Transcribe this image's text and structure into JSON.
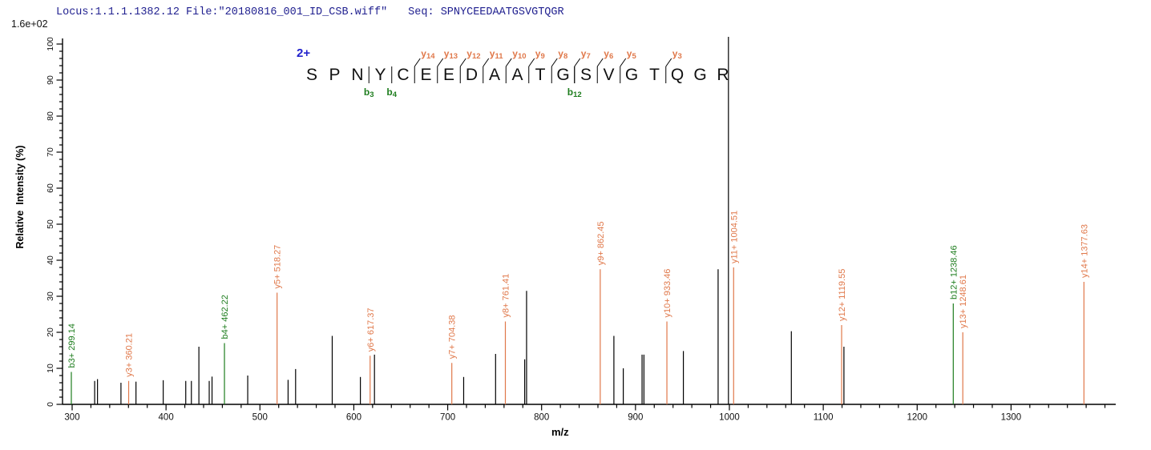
{
  "header": {
    "locus_file": "Locus:1.1.1.1382.12 File:\"20180816_001_ID_CSB.wiff\"",
    "seq_label": "Seq:",
    "sequence": "SPNYCEEDAATGSVGTQGR"
  },
  "colors": {
    "y_ion": "#E0784A",
    "b_ion": "#1E7D1E",
    "peak": "#000000",
    "axis": "#000000",
    "header_text": "#1F1F8F",
    "charge": "#2222CC",
    "sequence_letter": "#111111"
  },
  "chart_data": {
    "type": "bar",
    "subtype": "peptide-ms2-fragment-spectrum",
    "title": "",
    "xlabel": "m/z",
    "ylabel": "Relative  Intensity (%)",
    "y_scale_note": "1.6e+02",
    "xlim": [
      288,
      1411
    ],
    "ylim": [
      0,
      100
    ],
    "x_major_ticks": [
      300,
      400,
      500,
      600,
      700,
      800,
      900,
      1000,
      1100,
      1200,
      1300
    ],
    "x_minor_step": 20,
    "x_minor_max": 1400,
    "y_major_step": 10,
    "y_minor_step": 2,
    "grid": false,
    "legend": "none",
    "precursor_charge": "2+",
    "peptide_residues": [
      "S",
      "P",
      "N",
      "Y",
      "C",
      "E",
      "E",
      "D",
      "A",
      "A",
      "T",
      "G",
      "S",
      "V",
      "G",
      "T",
      "Q",
      "G",
      "R"
    ],
    "y_ion_marks": [
      {
        "ion": "y",
        "num": 14,
        "boundary": 5
      },
      {
        "ion": "y",
        "num": 13,
        "boundary": 6
      },
      {
        "ion": "y",
        "num": 12,
        "boundary": 7
      },
      {
        "ion": "y",
        "num": 11,
        "boundary": 8
      },
      {
        "ion": "y",
        "num": 10,
        "boundary": 9
      },
      {
        "ion": "y",
        "num": 9,
        "boundary": 10
      },
      {
        "ion": "y",
        "num": 8,
        "boundary": 11
      },
      {
        "ion": "y",
        "num": 7,
        "boundary": 12
      },
      {
        "ion": "y",
        "num": 6,
        "boundary": 13
      },
      {
        "ion": "y",
        "num": 5,
        "boundary": 14
      },
      {
        "ion": "y",
        "num": 3,
        "boundary": 16
      }
    ],
    "b_ion_marks": [
      {
        "ion": "b",
        "num": 3,
        "boundary": 3
      },
      {
        "ion": "b",
        "num": 4,
        "boundary": 4
      },
      {
        "ion": "b",
        "num": 12,
        "boundary": 12
      }
    ],
    "labeled_peaks": [
      {
        "ion": "b3",
        "series": "b",
        "mz": 299.14,
        "intensity": 9
      },
      {
        "ion": "y3",
        "series": "y",
        "mz": 360.21,
        "intensity": 6.5
      },
      {
        "ion": "b4",
        "series": "b",
        "mz": 462.22,
        "intensity": 17
      },
      {
        "ion": "y5",
        "series": "y",
        "mz": 518.27,
        "intensity": 31
      },
      {
        "ion": "y6",
        "series": "y",
        "mz": 617.37,
        "intensity": 13.5
      },
      {
        "ion": "y7",
        "series": "y",
        "mz": 704.38,
        "intensity": 11.5
      },
      {
        "ion": "y8",
        "series": "y",
        "mz": 761.41,
        "intensity": 23
      },
      {
        "ion": "y9",
        "series": "y",
        "mz": 862.45,
        "intensity": 37.5
      },
      {
        "ion": "y10",
        "series": "y",
        "mz": 933.46,
        "intensity": 23
      },
      {
        "ion": "y11",
        "series": "y",
        "mz": 1004.51,
        "intensity": 38
      },
      {
        "ion": "y12",
        "series": "y",
        "mz": 1119.55,
        "intensity": 22
      },
      {
        "ion": "b12",
        "series": "b",
        "mz": 1238.46,
        "intensity": 28
      },
      {
        "ion": "y13",
        "series": "y",
        "mz": 1248.61,
        "intensity": 20
      },
      {
        "ion": "y14",
        "series": "y",
        "mz": 1377.63,
        "intensity": 34
      }
    ],
    "unlabeled_peaks": [
      [
        324,
        6.5
      ],
      [
        327,
        7
      ],
      [
        352,
        6
      ],
      [
        368,
        6.3
      ],
      [
        397,
        6.7
      ],
      [
        421,
        6.5
      ],
      [
        427,
        6.5
      ],
      [
        435,
        16
      ],
      [
        446,
        6.5
      ],
      [
        449,
        7.7
      ],
      [
        487,
        8
      ],
      [
        530,
        6.8
      ],
      [
        538,
        9.8
      ],
      [
        577,
        19
      ],
      [
        607,
        7.6
      ],
      [
        622,
        13.8
      ],
      [
        717,
        7.6
      ],
      [
        751,
        14
      ],
      [
        782,
        12.5
      ],
      [
        784,
        31.5
      ],
      [
        877,
        19
      ],
      [
        887,
        10
      ],
      [
        907,
        13.8
      ],
      [
        909,
        13.8
      ],
      [
        951,
        14.8
      ],
      [
        988,
        37.5
      ],
      [
        999,
        102
      ],
      [
        1066,
        20.3
      ],
      [
        1122,
        16
      ]
    ]
  }
}
